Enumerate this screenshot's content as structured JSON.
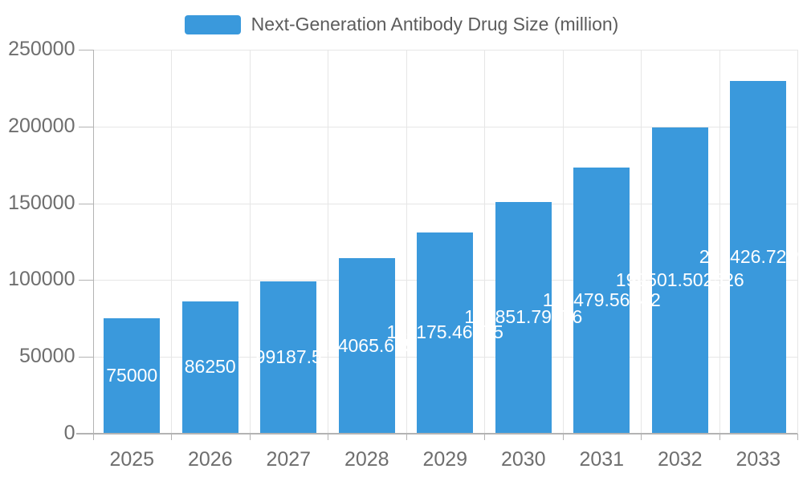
{
  "legend": {
    "label": "Next-Generation Antibody Drug Size (million)"
  },
  "chart_data": {
    "type": "bar",
    "title": "Next-Generation Antibody Drug Size (million)",
    "categories": [
      "2025",
      "2026",
      "2027",
      "2028",
      "2029",
      "2030",
      "2031",
      "2032",
      "2033"
    ],
    "values": [
      75000,
      86250,
      99187.5,
      114065.625,
      131175.46875,
      150851.79776,
      173479.56742,
      199501.502526,
      229426.7279
    ],
    "value_labels": [
      "75000",
      "86250",
      "99187.5",
      "114065.625",
      "131175.46875",
      "150851.79776",
      "173479.56742",
      "199501.502526",
      "229426.72790"
    ],
    "series_name": "Next-Generation Antibody Drug Size (million)",
    "xlabel": "",
    "ylabel": "",
    "ylim": [
      0,
      250000
    ],
    "yticks": [
      0,
      50000,
      100000,
      150000,
      200000,
      250000
    ],
    "ytick_labels": [
      "0",
      "50000",
      "100000",
      "150000",
      "200000",
      "250000"
    ],
    "grid": true,
    "legend_position": "top",
    "label_position": "inside-center",
    "colors": {
      "bar": "#3A99DC",
      "value_label": "#ffffff",
      "axis_line": "#b3b3b3",
      "grid_line": "#e6e6e6",
      "axis_text": "#6e6e6e",
      "legend_text": "#5c5c5c"
    }
  }
}
